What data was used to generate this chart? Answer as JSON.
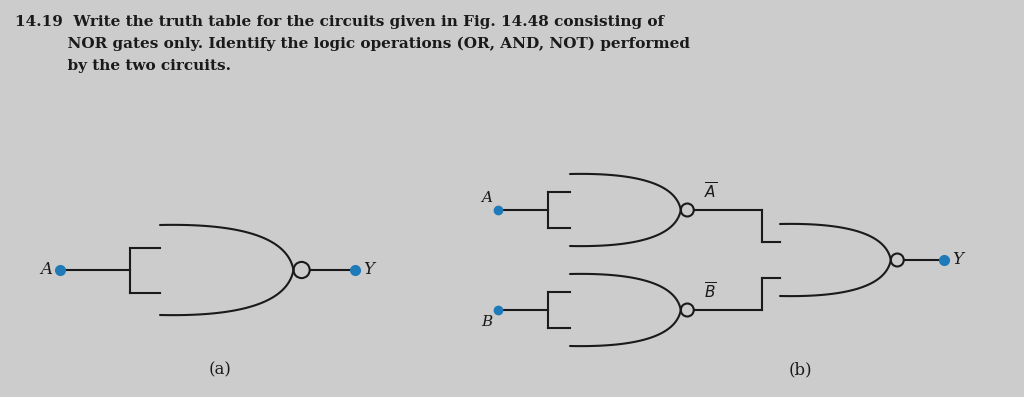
{
  "bg_color": "#cccccc",
  "text_color": "#1a1a1a",
  "gate_color": "#1a1a1a",
  "dot_color": "#1e7ab8",
  "title_line1": "14.19  Write the truth table for the circuits given in Fig. 14.48 consisting of",
  "title_line2": "          NOR gates only. Identify the logic operations (OR, AND, NOT) performed",
  "title_line3": "          by the two circuits.",
  "label_a": "A",
  "label_b": "B",
  "label_y": "Y",
  "label_sub_a": "(a)",
  "label_sub_b": "(b)",
  "font_size_title": 11.0,
  "font_size_labels": 11,
  "dot_size": 7
}
